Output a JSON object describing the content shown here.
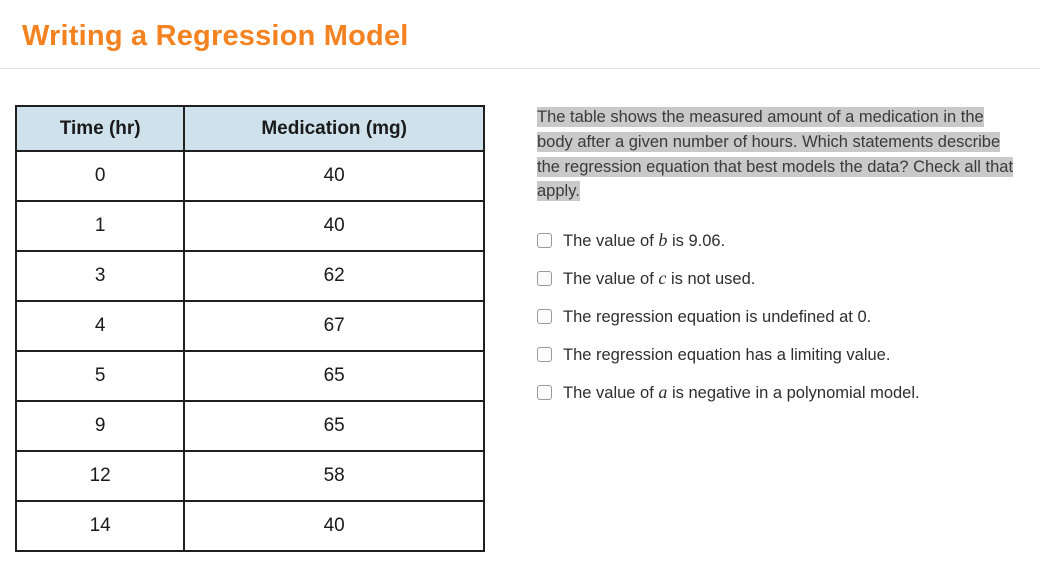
{
  "page": {
    "title": "Writing a Regression Model"
  },
  "colors": {
    "accent_orange": "#f58220",
    "table_header_bg": "#cfe2ec",
    "prompt_highlight_bg": "#c9c9c9",
    "table_border": "#1f1f1f"
  },
  "table": {
    "headers": [
      "Time (hr)",
      "Medication (mg)"
    ],
    "rows": [
      [
        "0",
        "40"
      ],
      [
        "1",
        "40"
      ],
      [
        "3",
        "62"
      ],
      [
        "4",
        "67"
      ],
      [
        "5",
        "65"
      ],
      [
        "9",
        "65"
      ],
      [
        "12",
        "58"
      ],
      [
        "14",
        "40"
      ]
    ]
  },
  "question": {
    "prompt": "The table shows the measured amount of a medication in the body after a given number of hours. Which statements describe the regression equation that best models the data? Check all that apply.",
    "options": [
      {
        "pre": "The value of ",
        "var": "b",
        "post": " is 9.06."
      },
      {
        "pre": "The value of ",
        "var": "c",
        "post": " is not used."
      },
      {
        "pre": "The regression equation is undefined at 0.",
        "var": "",
        "post": ""
      },
      {
        "pre": "The regression equation has a limiting value.",
        "var": "",
        "post": ""
      },
      {
        "pre": "The value of ",
        "var": "a",
        "post": " is negative in a polynomial model."
      }
    ]
  }
}
